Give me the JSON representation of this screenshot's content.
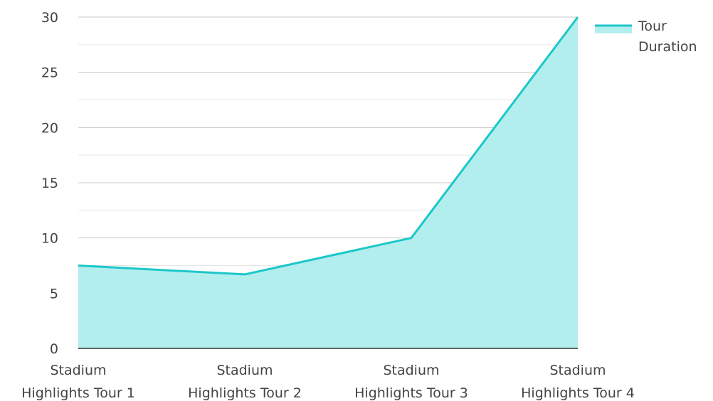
{
  "chart_data": {
    "type": "area",
    "categories": [
      [
        "Stadium",
        "Highlights Tour 1"
      ],
      [
        "Stadium",
        "Highlights Tour 2"
      ],
      [
        "Stadium",
        "Highlights Tour 3"
      ],
      [
        "Stadium",
        "Highlights Tour 4"
      ]
    ],
    "series": [
      {
        "name": "Tour Duration",
        "values": [
          7.5,
          6.7,
          10,
          30
        ]
      }
    ],
    "y_ticks": [
      "0",
      "5",
      "10",
      "15",
      "20",
      "25",
      "30"
    ],
    "legend_lines": [
      "Tour",
      "Duration"
    ],
    "ylim": [
      0,
      30
    ],
    "grid": true,
    "legend_position": "top-right",
    "colors": {
      "line": "#1cc7c9",
      "fill": "#b3eeee",
      "grid": "#cccccc",
      "axis": "#333333"
    }
  }
}
